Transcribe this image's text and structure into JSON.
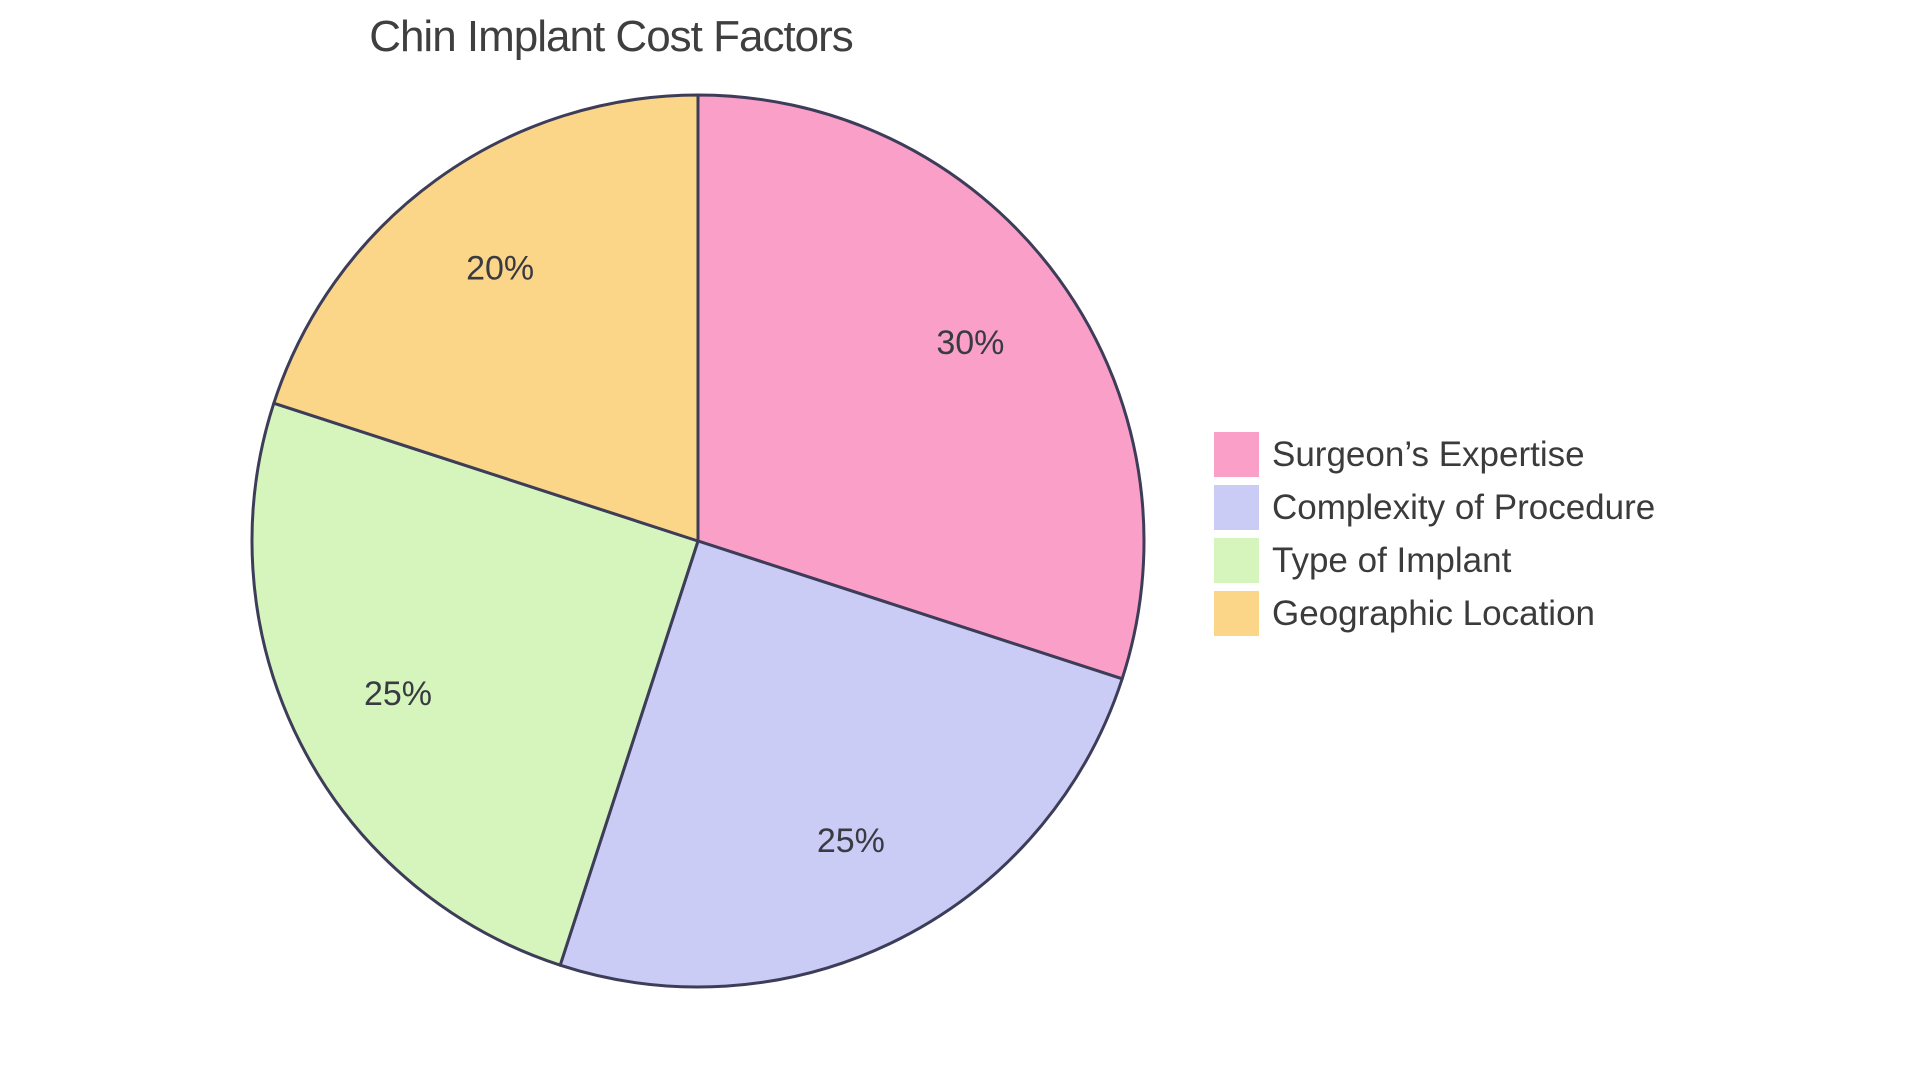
{
  "chart_data": {
    "type": "pie",
    "title": "Chin Implant Cost Factors",
    "direction": "clockwise",
    "start_angle": "top",
    "legend_position": "right",
    "series": [
      {
        "label": "Surgeon’s Expertise",
        "value": 30,
        "percent_label": "30%",
        "color": "#FA9FC8"
      },
      {
        "label": "Complexity of Procedure",
        "value": 25,
        "percent_label": "25%",
        "color": "#CACCF5"
      },
      {
        "label": "Type of Implant",
        "value": 25,
        "percent_label": "25%",
        "color": "#D6F5BD"
      },
      {
        "label": "Geographic Location",
        "value": 20,
        "percent_label": "20%",
        "color": "#FBD688"
      }
    ],
    "outline_color": "#3D3D59",
    "title_color": "#3F3F3F",
    "percent_label_color": "#3A3A42",
    "legend_text_color": "#3B3B3B",
    "background_color": "#FFFFFF"
  }
}
